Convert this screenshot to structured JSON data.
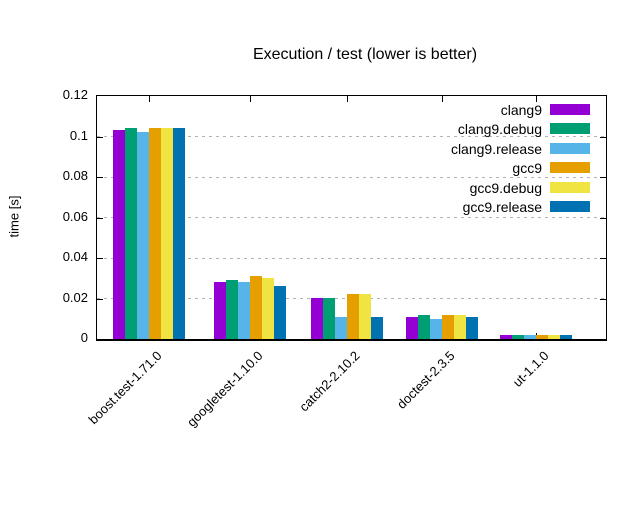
{
  "chart_data": {
    "type": "bar",
    "title": "Execution / test (lower is better)",
    "xlabel": "",
    "ylabel": "time [s]",
    "ylim": [
      0,
      0.12
    ],
    "ytick_values": [
      0,
      0.02,
      0.04,
      0.06,
      0.08,
      0.1,
      0.12
    ],
    "ytick_labels": [
      "0",
      "0.02",
      "0.04",
      "0.06",
      "0.08",
      "0.1",
      "0.12"
    ],
    "grid": "horizontal-dashed",
    "legend_position": "inside-top-right",
    "categories": [
      "boost.test-1.71.0",
      "googletest-1.10.0",
      "catch2-2.10.2",
      "doctest-2.3.5",
      "ut-1.1.0"
    ],
    "series": [
      {
        "name": "clang9",
        "color": "#9400d3",
        "values": [
          0.103,
          0.028,
          0.02,
          0.011,
          0.002
        ]
      },
      {
        "name": "clang9.debug",
        "color": "#009e73",
        "values": [
          0.104,
          0.029,
          0.02,
          0.012,
          0.002
        ]
      },
      {
        "name": "clang9.release",
        "color": "#56b4e9",
        "values": [
          0.102,
          0.028,
          0.011,
          0.01,
          0.002
        ]
      },
      {
        "name": "gcc9",
        "color": "#e69f00",
        "values": [
          0.104,
          0.031,
          0.022,
          0.012,
          0.002
        ]
      },
      {
        "name": "gcc9.debug",
        "color": "#f0e442",
        "values": [
          0.104,
          0.03,
          0.022,
          0.012,
          0.002
        ]
      },
      {
        "name": "gcc9.release",
        "color": "#0072b2",
        "values": [
          0.104,
          0.026,
          0.011,
          0.011,
          0.002
        ]
      }
    ]
  }
}
